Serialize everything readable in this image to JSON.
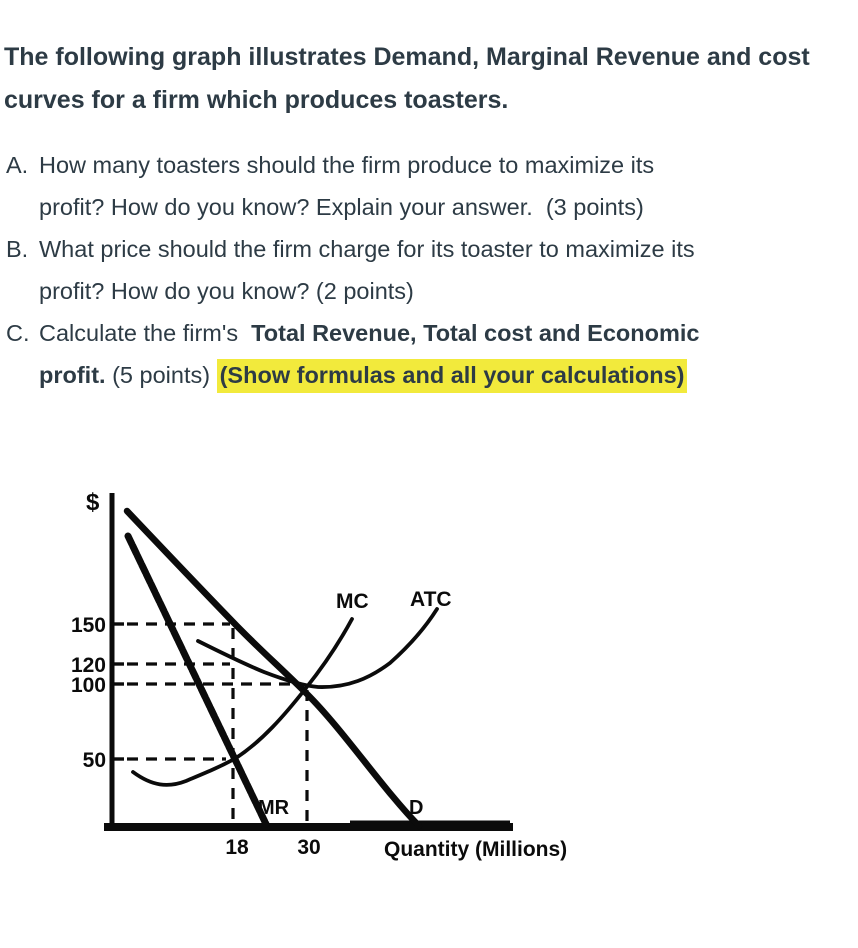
{
  "page": {
    "background": "#ffffff",
    "text_color": "#2d3b45",
    "highlight_color": "#f2ea3c",
    "graph_ink": "#0b0b0b"
  },
  "intro": {
    "line1": "The following graph illustrates Demand, Marginal Revenue and cost",
    "line2": "curves for a firm which produces toasters."
  },
  "questions": [
    {
      "label": "A.",
      "lines": [
        [
          {
            "t": "How many toasters should the firm produce to maximize its"
          }
        ],
        [
          {
            "t": "profit? How do you know? Explain your answer.  (3 points)"
          }
        ]
      ]
    },
    {
      "label": "B.",
      "lines": [
        [
          {
            "t": "What price should the firm charge for its toaster to maximize its"
          }
        ],
        [
          {
            "t": "profit? How do you know? (2 points)"
          }
        ]
      ]
    },
    {
      "label": "C.",
      "lines": [
        [
          {
            "t": "Calculate the firm's  "
          },
          {
            "t": "Total Revenue, Total cost and Economic",
            "bold": true
          }
        ],
        [
          {
            "t": "profit.",
            "bold": true
          },
          {
            "t": " (5 points) "
          },
          {
            "t": "(Show formulas and all your calculations)",
            "bold": true,
            "highlight": true
          }
        ]
      ]
    }
  ],
  "graph": {
    "dollar": "$",
    "x_axis_label": "Quantity (Millions)",
    "y_ticks": {
      "t150": "150",
      "t120": "120",
      "t100": "100",
      "t50": "50"
    },
    "x_ticks": {
      "t18": "18",
      "t30": "30"
    },
    "curves": {
      "mc": "MC",
      "atc": "ATC",
      "mr": "MR",
      "d": "D"
    }
  },
  "chart_data": {
    "type": "line",
    "title": "Demand, Marginal Revenue and cost curves for a toaster firm",
    "xlabel": "Quantity (Millions)",
    "ylabel": "$",
    "x_ticks": [
      18,
      30
    ],
    "y_ticks": [
      50,
      100,
      120,
      150
    ],
    "xlim": [
      0,
      55
    ],
    "ylim": [
      0,
      240
    ],
    "grid": false,
    "legend_position": "labels-on-curves",
    "series": [
      {
        "name": "D",
        "description": "Demand; straight downward-sloping thick line",
        "points": [
          [
            3,
            232
          ],
          [
            18,
            150
          ],
          [
            30,
            100
          ],
          [
            48,
            0
          ]
        ]
      },
      {
        "name": "MR",
        "description": "Marginal revenue; steeper downward thick line",
        "points": [
          [
            3,
            213
          ],
          [
            18,
            50
          ],
          [
            24,
            0
          ]
        ]
      },
      {
        "name": "MC",
        "description": "Marginal cost; U-shaped curve",
        "points": [
          [
            4,
            40
          ],
          [
            9,
            30
          ],
          [
            18,
            50
          ],
          [
            30,
            100
          ],
          [
            37,
            153
          ]
        ]
      },
      {
        "name": "ATC",
        "description": "Average total cost; U-shaped curve",
        "points": [
          [
            14,
            137
          ],
          [
            20,
            120
          ],
          [
            30,
            100
          ],
          [
            51,
            160
          ]
        ]
      }
    ],
    "dashed_guides": {
      "horizontal_at_y": [
        150,
        120,
        100,
        50
      ],
      "vertical_at_x": [
        18,
        30
      ]
    },
    "key_points": [
      {
        "quantity": 18,
        "note": "MR = MC = 50; Demand price = 150; ATC = 120"
      },
      {
        "quantity": 30,
        "note": "MC = ATC = Demand = 100 (minimum ATC)"
      }
    ]
  }
}
